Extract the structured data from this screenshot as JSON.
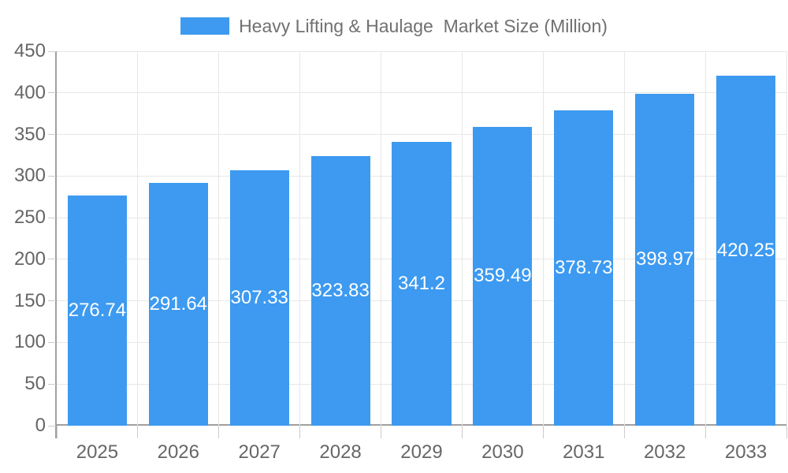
{
  "legend": {
    "label": "Heavy Lifting & Haulage  Market Size (Million)",
    "swatch_color": "#3D9AF0"
  },
  "chart_data": {
    "type": "bar",
    "title": "Heavy Lifting & Haulage  Market Size (Million)",
    "categories": [
      "2025",
      "2026",
      "2027",
      "2028",
      "2029",
      "2030",
      "2031",
      "2032",
      "2033"
    ],
    "values": [
      276.74,
      291.64,
      307.33,
      323.83,
      341.2,
      359.49,
      378.73,
      398.97,
      420.25
    ],
    "value_labels": [
      "276.74",
      "291.64",
      "307.33",
      "323.83",
      "341.2",
      "359.49",
      "378.73",
      "398.97",
      "420.25"
    ],
    "series_name": "Heavy Lifting & Haulage  Market Size (Million)",
    "xlabel": "",
    "ylabel": "",
    "ylim": [
      0,
      450
    ],
    "ytick_step": 50,
    "ytick_labels": [
      "0",
      "50",
      "100",
      "150",
      "200",
      "250",
      "300",
      "350",
      "400",
      "450"
    ],
    "grid": true,
    "legend_position": "top",
    "bar_color": "#3D9AF0",
    "value_label_color": "#FFFFFF",
    "axis_text_color": "#666666",
    "legend_text_color": "#707070",
    "grid_color": "#E7E7E7",
    "axis_line_color": "#A0A0A0",
    "tick_color": "#CCCCCC",
    "background": "#FFFFFF"
  }
}
